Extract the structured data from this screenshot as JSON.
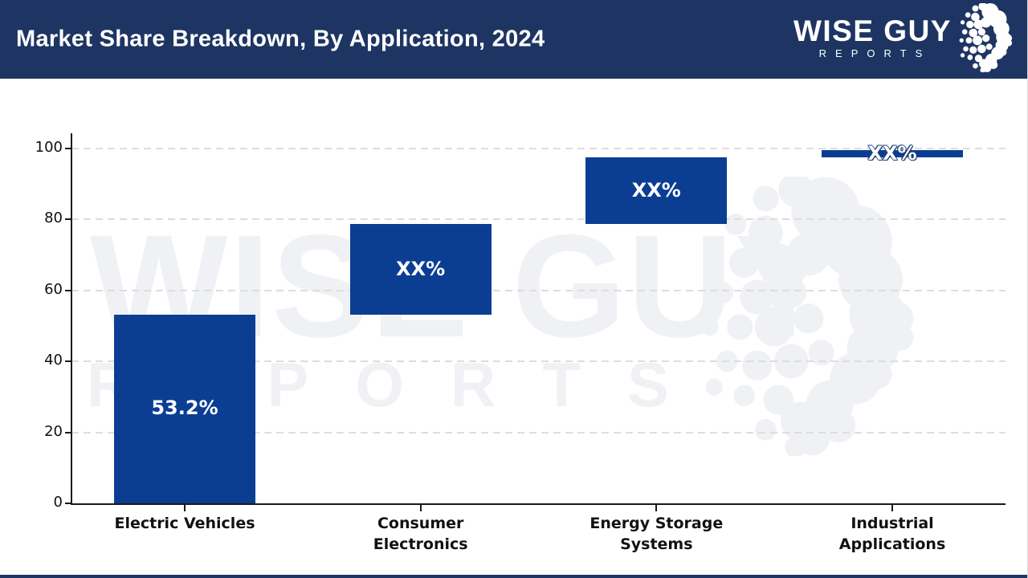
{
  "header": {
    "title": "Market Share Breakdown, By Application, 2024",
    "logo": {
      "brand_line1": "WISE GUY",
      "brand_line2": "REPORTS",
      "face_icon": "dotted-head-profile"
    }
  },
  "watermark": {
    "brand_line1": "WISE GUY",
    "brand_line2": "REPORTS",
    "face_icon": "dotted-head-profile"
  },
  "colors": {
    "header_bg": "#1e3563",
    "bar_fill": "#0b3e93",
    "grid_line": "#dddddd",
    "axis_line": "#1a1a1a",
    "bar_label_text": "#ffffff",
    "tick_text": "#111111",
    "watermark": "#f0f1f4",
    "title_text": "#ffffff"
  },
  "chart_data": {
    "type": "bar",
    "subtype": "waterfall",
    "title": "Market Share Breakdown, By Application, 2024",
    "unit": "%",
    "categories": [
      "Electric Vehicles",
      "Consumer Electronics",
      "Energy Storage Systems",
      "Industrial Applications"
    ],
    "category_label_lines": [
      [
        "Electric Vehicles"
      ],
      [
        "Consumer",
        "Electronics"
      ],
      [
        "Energy Storage",
        "Systems"
      ],
      [
        "Industrial",
        "Applications"
      ]
    ],
    "series": [
      {
        "name": "Market share",
        "segments": [
          {
            "category": "Electric Vehicles",
            "start": 0,
            "end": 53.2,
            "label": "53.2%"
          },
          {
            "category": "Consumer Electronics",
            "start": 53.2,
            "end": 78.6,
            "label": "XX%"
          },
          {
            "category": "Energy Storage Systems",
            "start": 78.6,
            "end": 97.5,
            "label": "XX%"
          },
          {
            "category": "Industrial Applications",
            "start": 97.5,
            "end": 99.4,
            "label": "XX%"
          }
        ]
      }
    ],
    "xlabel": "",
    "ylabel": "",
    "ylim": [
      0,
      104
    ],
    "yticks": [
      0,
      20,
      40,
      60,
      80,
      100
    ],
    "grid": "horizontal-dashed",
    "legend": "none"
  }
}
